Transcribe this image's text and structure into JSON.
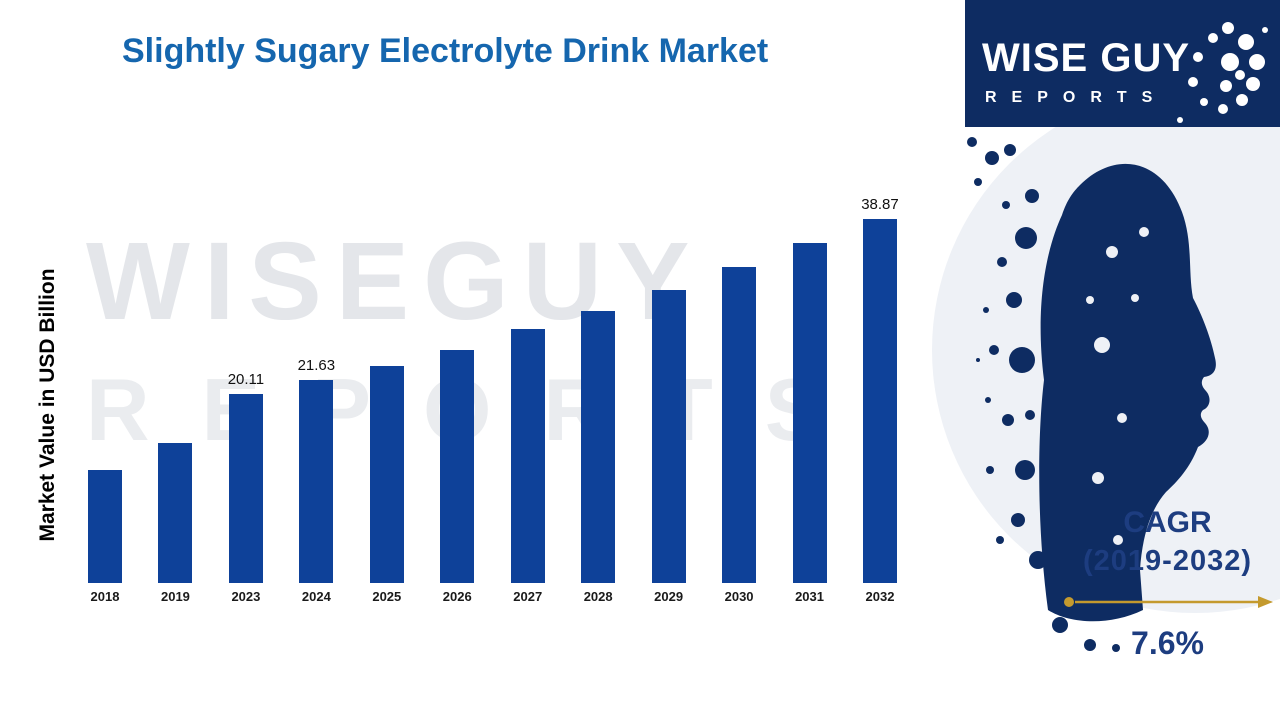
{
  "header": {
    "title": "Slightly Sugary Electrolyte Drink Market",
    "title_color": "#1566ae"
  },
  "logo": {
    "line1": "WISE GUY",
    "line2": "REPORTS",
    "bg_color": "#0e2c62"
  },
  "watermark": {
    "line1": "WISEGUY",
    "line2": "REPORTS"
  },
  "chart_data": {
    "type": "bar",
    "title": "Slightly Sugary Electrolyte Drink Market",
    "xlabel": "",
    "ylabel": "Market Value in USD Billion",
    "categories": [
      "2018",
      "2019",
      "2023",
      "2024",
      "2025",
      "2026",
      "2027",
      "2028",
      "2029",
      "2030",
      "2031",
      "2032"
    ],
    "values": [
      12.0,
      14.9,
      20.11,
      21.63,
      23.1,
      24.9,
      27.1,
      29.0,
      31.2,
      33.7,
      36.3,
      38.87
    ],
    "value_labels": [
      null,
      null,
      "20.11",
      "21.63",
      null,
      null,
      null,
      null,
      null,
      null,
      null,
      "38.87"
    ],
    "ylim": [
      0,
      40
    ],
    "unit": "USD Billion",
    "bar_color": "#0e4199",
    "grid": false,
    "legend": false
  },
  "cagr": {
    "label": "CAGR",
    "range": "(2019-2032)",
    "value": "7.6%",
    "text_color": "#1d3d80",
    "accent_color": "#c49a2e"
  }
}
